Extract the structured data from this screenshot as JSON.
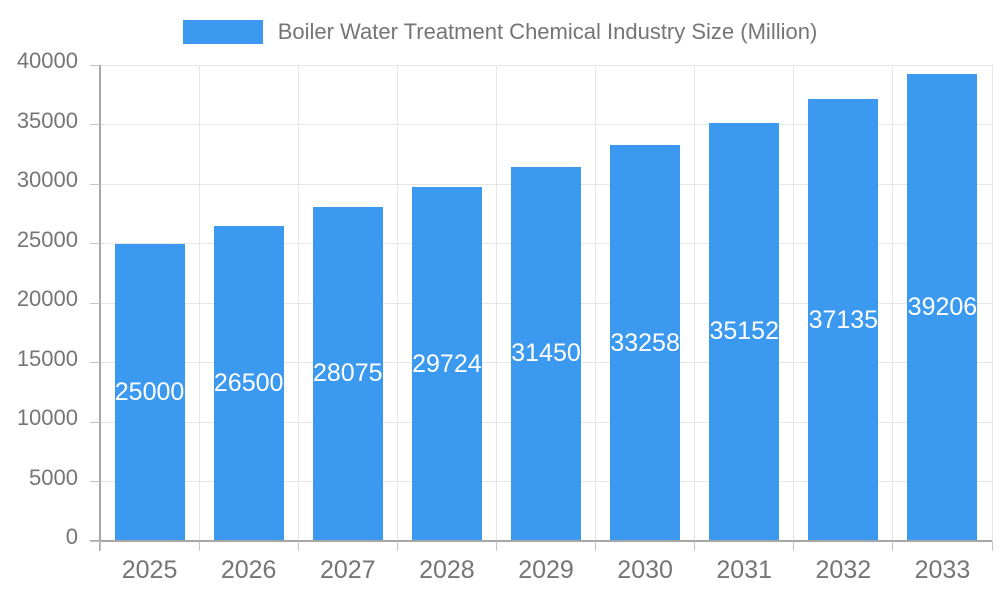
{
  "chart_data": {
    "type": "bar",
    "title": "Boiler Water Treatment Chemical Industry Size (Million)",
    "categories": [
      "2025",
      "2026",
      "2027",
      "2028",
      "2029",
      "2030",
      "2031",
      "2032",
      "2033"
    ],
    "values": [
      25000,
      26500,
      28075,
      29724,
      31450,
      33258,
      35152,
      37135,
      39206
    ],
    "xlabel": "",
    "ylabel": "",
    "ylim": [
      0,
      40000
    ],
    "yticks": [
      0,
      5000,
      10000,
      15000,
      20000,
      25000,
      30000,
      35000,
      40000
    ],
    "grid": true,
    "legend_position": "top-center",
    "bar_value_labels_visible": true,
    "colors": {
      "bar": "#3B99F0",
      "bar_value_label": "#FFFFFF",
      "axis_label": "#757575",
      "legend_label": "#757575",
      "gridline": "#E6E6E6",
      "tick": "#C4C4C4",
      "axis_line": "#A6A6A6",
      "background": "#FFFFFF"
    }
  }
}
